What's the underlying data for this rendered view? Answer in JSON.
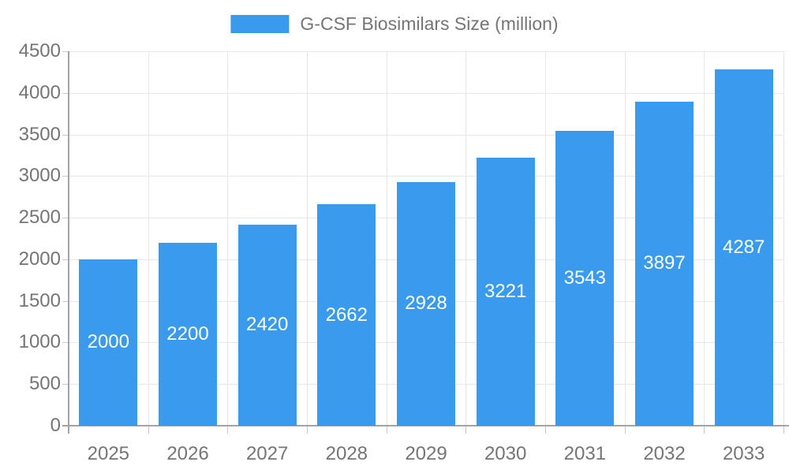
{
  "chart_data": {
    "type": "bar",
    "title": "G-CSF Biosimilars Size (million)",
    "categories": [
      "2025",
      "2026",
      "2027",
      "2028",
      "2029",
      "2030",
      "2031",
      "2032",
      "2033"
    ],
    "values": [
      2000,
      2200,
      2420,
      2662,
      2928,
      3221,
      3543,
      3897,
      4287
    ],
    "series": [
      {
        "name": "G-CSF Biosimilars Size (million)",
        "values": [
          2000,
          2200,
          2420,
          2662,
          2928,
          3221,
          3543,
          3897,
          4287
        ]
      }
    ],
    "xlabel": "",
    "ylabel": "",
    "ylim": [
      0,
      4500
    ],
    "ytick_step": 500,
    "grid": true,
    "legend_position": "top-center",
    "value_labels": "inside-center-white",
    "colors": {
      "bar": "#3A9AEE",
      "value_label": "#FFFFFF",
      "axis_text": "#757575",
      "gridline": "#E7E7E7",
      "axis_line": "#A3A3A3"
    }
  }
}
